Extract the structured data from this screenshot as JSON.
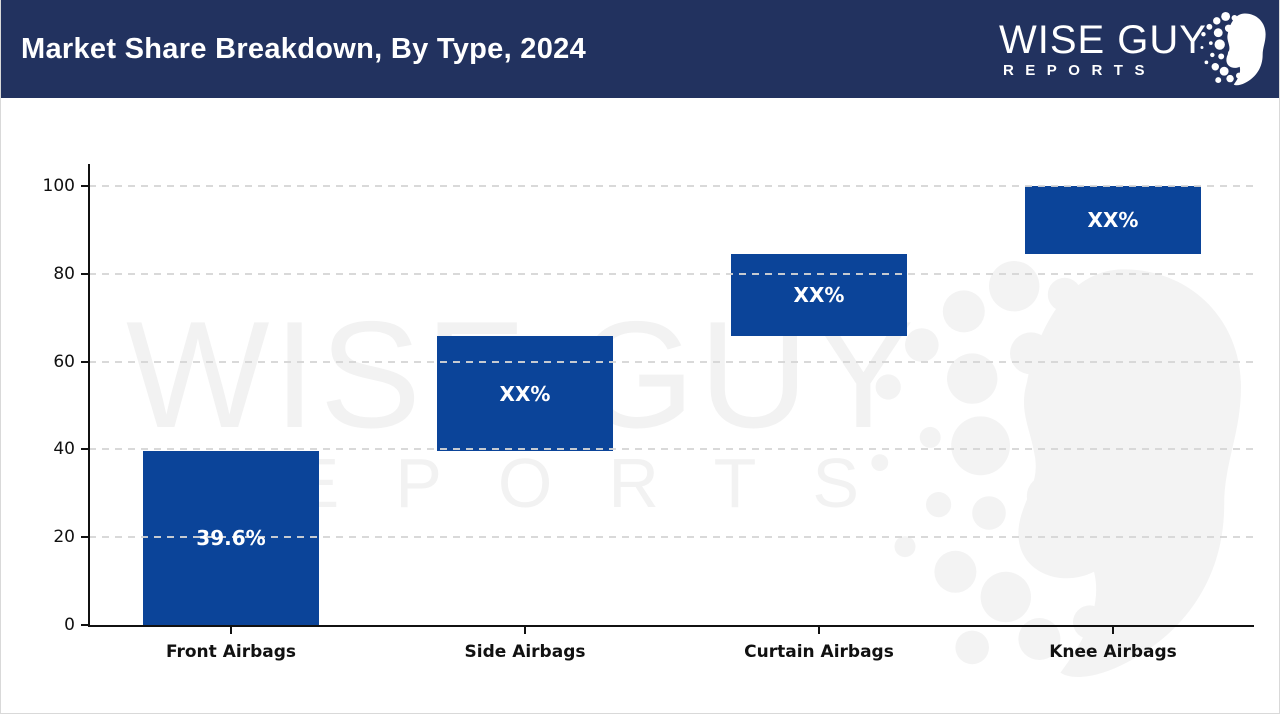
{
  "header": {
    "title": "Market Share Breakdown, By Type, 2024",
    "bg_color": "#22325f"
  },
  "logo": {
    "line1": "WISE GUY",
    "line2": "REPORTS"
  },
  "watermark": {
    "line1": "WISE GUY",
    "line2": "REPORTS"
  },
  "chart_data": {
    "type": "bar",
    "subtype": "waterfall",
    "title": "Market Share Breakdown, By Type, 2024",
    "categories": [
      "Front Airbags",
      "Side Airbags",
      "Curtain Airbags",
      "Knee Airbags"
    ],
    "bars": [
      {
        "category": "Front Airbags",
        "start": 0,
        "end": 39.6,
        "label": "39.6%"
      },
      {
        "category": "Side Airbags",
        "start": 39.6,
        "end": 65.8,
        "label": "XX%"
      },
      {
        "category": "Curtain Airbags",
        "start": 65.8,
        "end": 84.5,
        "label": "XX%"
      },
      {
        "category": "Knee Airbags",
        "start": 84.5,
        "end": 100,
        "label": "XX%"
      }
    ],
    "yticks": [
      0,
      20,
      40,
      60,
      80,
      100
    ],
    "ytick_labels": [
      "0",
      "20",
      "40",
      "60",
      "80",
      "100"
    ],
    "ylim": [
      0,
      105
    ],
    "xlabel": "",
    "ylabel": "",
    "grid": "dashed-horizontal",
    "legend": "none",
    "bar_color": "#0b4499"
  }
}
